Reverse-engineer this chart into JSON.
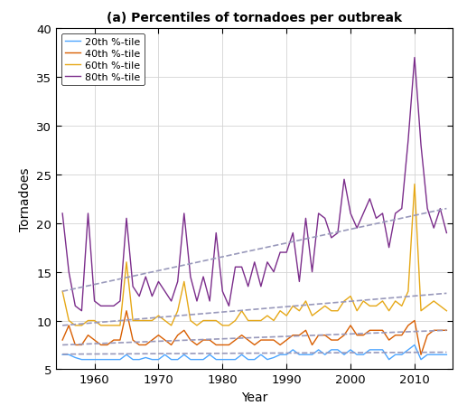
{
  "title": "(a) Percentiles of tornadoes per outbreak",
  "xlabel": "Year",
  "ylabel": "Tornadoes",
  "xlim": [
    1954,
    2016
  ],
  "ylim": [
    5,
    40
  ],
  "yticks": [
    5,
    10,
    15,
    20,
    25,
    30,
    35,
    40
  ],
  "xticks": [
    1960,
    1970,
    1980,
    1990,
    2000,
    2010
  ],
  "legend_labels": [
    "20th %-tile",
    "40th %-tile",
    "60th %-tile",
    "80th %-tile"
  ],
  "colors": [
    "#4DA6FF",
    "#D95F02",
    "#E6A817",
    "#7B2D8B"
  ],
  "trend_color": "#9999BB",
  "years": [
    1955,
    1956,
    1957,
    1958,
    1959,
    1960,
    1961,
    1962,
    1963,
    1964,
    1965,
    1966,
    1967,
    1968,
    1969,
    1970,
    1971,
    1972,
    1973,
    1974,
    1975,
    1976,
    1977,
    1978,
    1979,
    1980,
    1981,
    1982,
    1983,
    1984,
    1985,
    1986,
    1987,
    1988,
    1989,
    1990,
    1991,
    1992,
    1993,
    1994,
    1995,
    1996,
    1997,
    1998,
    1999,
    2000,
    2001,
    2002,
    2003,
    2004,
    2005,
    2006,
    2007,
    2008,
    2009,
    2010,
    2011,
    2012,
    2013,
    2014,
    2015
  ],
  "p20": [
    6.5,
    6.5,
    6.2,
    6.0,
    6.0,
    6.0,
    6.0,
    6.0,
    6.0,
    6.0,
    6.5,
    6.0,
    6.0,
    6.2,
    6.0,
    6.0,
    6.5,
    6.0,
    6.0,
    6.5,
    6.0,
    6.0,
    6.0,
    6.5,
    6.0,
    6.0,
    6.0,
    6.0,
    6.5,
    6.0,
    6.0,
    6.5,
    6.0,
    6.2,
    6.5,
    6.5,
    7.0,
    6.5,
    6.5,
    6.5,
    7.0,
    6.5,
    7.0,
    7.0,
    6.5,
    7.0,
    6.5,
    6.5,
    7.0,
    7.0,
    7.0,
    6.0,
    6.5,
    6.5,
    7.0,
    7.5,
    6.0,
    6.5,
    6.5,
    6.5,
    6.5
  ],
  "p40": [
    8.0,
    9.5,
    7.5,
    7.5,
    8.5,
    8.0,
    7.5,
    7.5,
    8.0,
    8.0,
    11.0,
    8.0,
    7.5,
    7.5,
    8.0,
    8.5,
    8.0,
    7.5,
    8.5,
    9.0,
    8.0,
    7.5,
    8.0,
    8.0,
    7.5,
    7.5,
    7.5,
    8.0,
    8.5,
    8.0,
    7.5,
    8.0,
    8.0,
    8.0,
    7.5,
    8.0,
    8.5,
    8.5,
    9.0,
    7.5,
    8.5,
    8.5,
    8.0,
    8.0,
    8.5,
    9.5,
    8.5,
    8.5,
    9.0,
    9.0,
    9.0,
    8.0,
    8.5,
    8.5,
    9.5,
    10.0,
    6.5,
    8.5,
    9.0,
    9.0,
    9.0
  ],
  "p60": [
    13.0,
    10.0,
    9.5,
    9.5,
    10.0,
    10.0,
    9.5,
    9.5,
    9.5,
    9.5,
    16.0,
    10.0,
    10.0,
    10.0,
    10.0,
    10.5,
    10.0,
    9.5,
    11.0,
    14.0,
    10.0,
    9.5,
    10.0,
    10.0,
    10.0,
    9.5,
    9.5,
    10.0,
    11.0,
    10.0,
    10.0,
    10.0,
    10.5,
    10.0,
    11.0,
    10.5,
    11.5,
    11.0,
    12.0,
    10.5,
    11.0,
    11.5,
    11.0,
    11.0,
    12.0,
    12.5,
    11.0,
    12.0,
    11.5,
    11.5,
    12.0,
    11.0,
    12.0,
    11.5,
    13.0,
    24.0,
    11.0,
    11.5,
    12.0,
    11.5,
    11.0
  ],
  "p80": [
    21.0,
    15.0,
    11.5,
    11.0,
    21.0,
    12.0,
    11.5,
    11.5,
    11.5,
    12.0,
    20.5,
    13.5,
    12.5,
    14.5,
    12.5,
    14.0,
    13.0,
    12.0,
    14.0,
    21.0,
    14.5,
    12.0,
    14.5,
    12.0,
    19.0,
    13.0,
    11.5,
    15.5,
    15.5,
    13.5,
    16.0,
    13.5,
    16.0,
    15.0,
    17.0,
    17.0,
    19.0,
    14.0,
    20.5,
    15.0,
    21.0,
    20.5,
    18.5,
    19.0,
    24.5,
    21.0,
    19.5,
    21.0,
    22.5,
    20.5,
    21.0,
    17.5,
    21.0,
    21.5,
    28.5,
    37.0,
    28.0,
    21.5,
    19.5,
    21.5,
    19.0
  ],
  "trend_start_year": 1955,
  "trend_end_year": 2015,
  "trend_p20": [
    6.55,
    6.75
  ],
  "trend_p40": [
    7.5,
    9.0
  ],
  "trend_p60": [
    9.5,
    12.8
  ],
  "trend_p80": [
    13.0,
    21.5
  ]
}
